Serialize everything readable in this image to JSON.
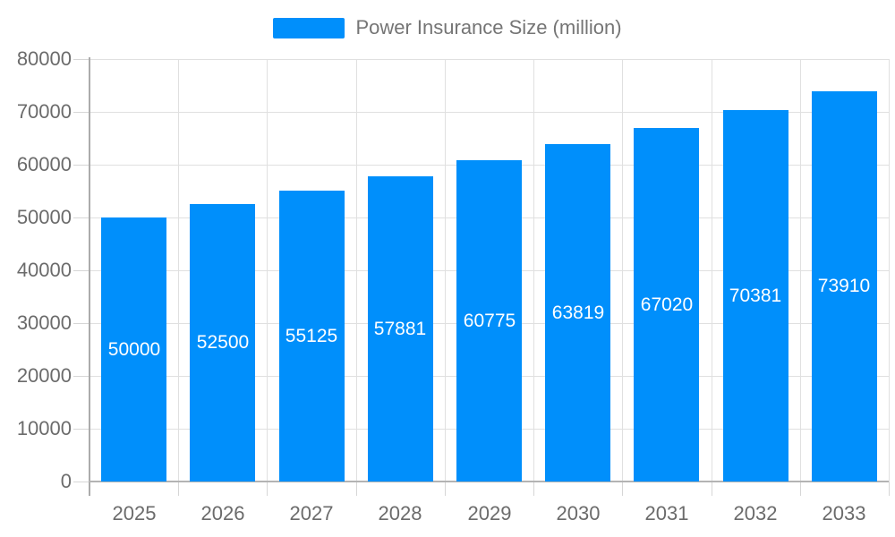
{
  "legend": {
    "label": "Power Insurance Size (million)"
  },
  "colors": {
    "bar": "#008FFB",
    "grid": "#e0e0e0",
    "tick": "#d6d6d6",
    "axis_line": "#ababab",
    "baseline": "#b3b3b3",
    "axis_text": "#6b6b6b",
    "legend_text": "#757575",
    "value_text": "#ffffff",
    "background": "#ffffff"
  },
  "chart_data": {
    "type": "bar",
    "title": "Power Insurance Size (million)",
    "categories": [
      "2025",
      "2026",
      "2027",
      "2028",
      "2029",
      "2030",
      "2031",
      "2032",
      "2033"
    ],
    "series": [
      {
        "name": "Power Insurance Size (million)",
        "values": [
          50000,
          52500,
          55125,
          57881,
          60775,
          63819,
          67020,
          70381,
          73910
        ]
      }
    ],
    "xlabel": "",
    "ylabel": "",
    "ylim": [
      0,
      80000
    ],
    "ytick_step": 10000,
    "ytick_labels": [
      "0",
      "10000",
      "20000",
      "30000",
      "40000",
      "50000",
      "60000",
      "70000",
      "80000"
    ],
    "grid": true,
    "legend_position": "top",
    "value_label_position": "inside-center"
  }
}
